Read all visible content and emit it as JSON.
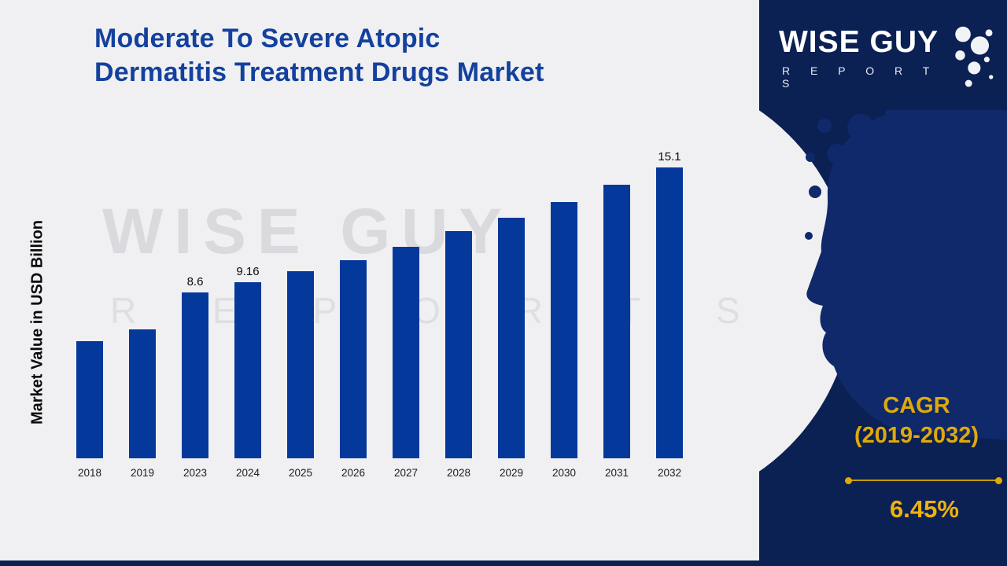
{
  "header": {
    "title": "Moderate To Severe Atopic Dermatitis Treatment Drugs Market",
    "title_line1": "Moderate To Severe Atopic",
    "title_line2": "Dermatitis Treatment Drugs Market",
    "title_color": "#14419e"
  },
  "chart_data": {
    "type": "bar",
    "title": "Moderate To Severe Atopic Dermatitis Treatment Drugs Market",
    "xlabel": "",
    "ylabel": "Market Value in USD Billion",
    "categories": [
      "2018",
      "2019",
      "2023",
      "2024",
      "2025",
      "2026",
      "2027",
      "2028",
      "2029",
      "2030",
      "2031",
      "2032"
    ],
    "values": [
      6.1,
      6.7,
      8.6,
      9.16,
      9.7,
      10.3,
      11.0,
      11.8,
      12.5,
      13.3,
      14.2,
      15.1
    ],
    "bar_labels": [
      "",
      "",
      "8.6",
      "9.16",
      "",
      "",
      "",
      "",
      "",
      "",
      "",
      "15.1"
    ],
    "ylim": [
      0,
      16
    ],
    "grid": false,
    "legend": false,
    "bar_color": "#05389b"
  },
  "watermark": {
    "line1": "WISE GUY",
    "line2": "R E P O R T S"
  },
  "sidebar": {
    "logo_title": "WISE GUY",
    "logo_subtitle": "R E P O R T S",
    "cagr_label": "CAGR",
    "cagr_period": "(2019-2032)",
    "cagr_value": "6.45%",
    "accent_color": "#dfa90a",
    "panel_color": "#0b2053"
  }
}
